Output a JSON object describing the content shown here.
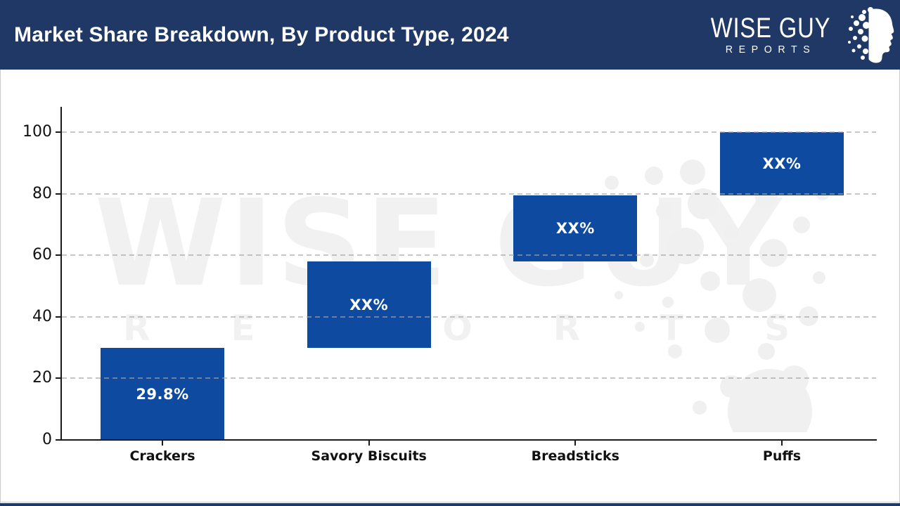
{
  "header": {
    "title": "Market Share Breakdown, By Product Type, 2024",
    "background": "#1f3866",
    "logo": {
      "line1": "WISE GUY",
      "line2": "REPORTS"
    }
  },
  "watermark": {
    "line1": "WISE GUY",
    "line2": "REPORTS"
  },
  "chart_data": {
    "type": "bar",
    "subtype": "waterfall",
    "title": "Market Share Breakdown, By Product Type, 2024",
    "categories": [
      "Crackers",
      "Savory Biscuits",
      "Breadsticks",
      "Puffs"
    ],
    "segments": [
      {
        "category": "Crackers",
        "start": 0,
        "end": 29.8,
        "label": "29.8%"
      },
      {
        "category": "Savory Biscuits",
        "start": 29.8,
        "end": 58,
        "label": "XX%"
      },
      {
        "category": "Breadsticks",
        "start": 58,
        "end": 79.5,
        "label": "XX%"
      },
      {
        "category": "Puffs",
        "start": 79.5,
        "end": 100,
        "label": "XX%"
      }
    ],
    "ylim": [
      0,
      100
    ],
    "yticks": [
      0,
      20,
      40,
      60,
      80,
      100
    ],
    "xlabel": "",
    "ylabel": "",
    "grid": "horizontal-dashed-over-bars",
    "legend": "none",
    "bar_color": "#0d4aa0",
    "bar_label_color": "#ffffff",
    "axis_color": "#1a1a1a"
  }
}
